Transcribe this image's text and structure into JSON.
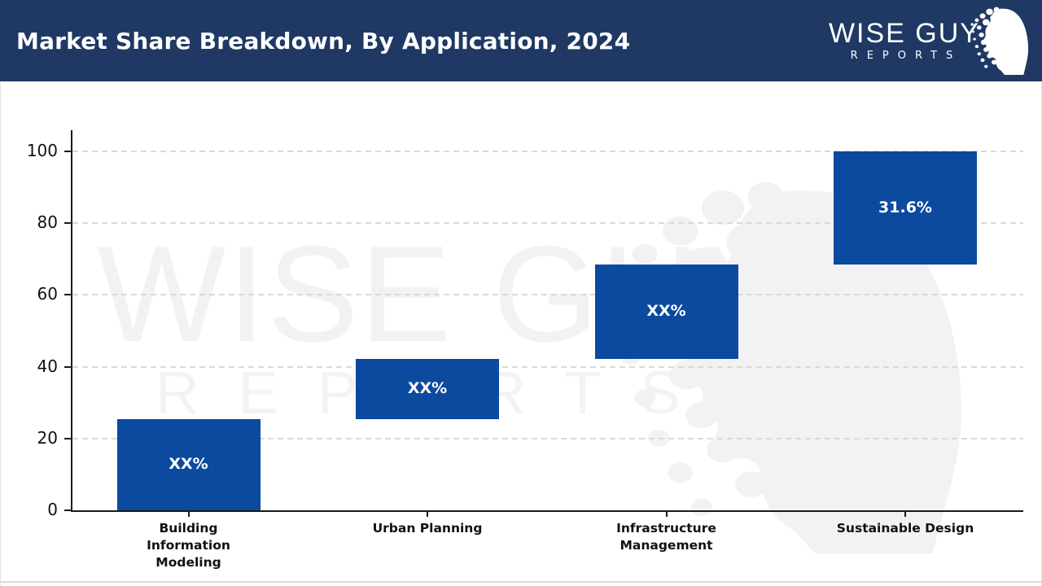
{
  "header": {
    "title": "Market Share Breakdown, By Application, 2024",
    "logo": {
      "name": "WISE GUY",
      "subtitle": "REPORTS"
    },
    "colors": {
      "background": "#1f3864",
      "text": "#ffffff"
    }
  },
  "watermark": {
    "line1": "WISE GUY",
    "line2": "REPORTS"
  },
  "chart_data": {
    "type": "bar",
    "subtype": "waterfall",
    "title": "Market Share Breakdown, By Application, 2024",
    "categories": [
      "Building\nInformation\nModeling",
      "Urban Planning",
      "Infrastructure\nManagement",
      "Sustainable Design"
    ],
    "segments": [
      {
        "category": "Building Information Modeling",
        "start": 0,
        "end": 25.4,
        "label": "XX%"
      },
      {
        "category": "Urban Planning",
        "start": 25.4,
        "end": 42.1,
        "label": "XX%"
      },
      {
        "category": "Infrastructure Management",
        "start": 42.1,
        "end": 68.4,
        "label": "XX%"
      },
      {
        "category": "Sustainable Design",
        "start": 68.4,
        "end": 100,
        "label": "31.6%"
      }
    ],
    "yticks": [
      0,
      20,
      40,
      60,
      80,
      100
    ],
    "ylim": [
      0,
      106
    ],
    "grid": {
      "horizontal": true,
      "style": "dashed",
      "color": "#d9d9d9"
    },
    "bar_color": "#0b4a9e",
    "value_label_color": "#ffffff",
    "axis_color": "#1a1a1a",
    "legend": "none"
  }
}
